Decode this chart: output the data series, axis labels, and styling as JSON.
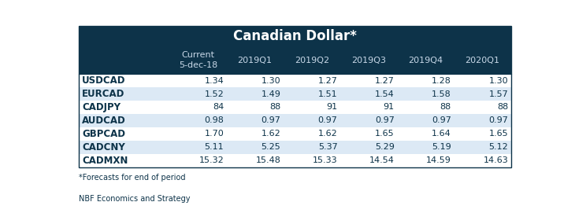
{
  "title": "Canadian Dollar*",
  "dark_bg_color": "#0d3349",
  "title_text_color": "#ffffff",
  "header_text_color": "#c8d8e8",
  "col_headers": [
    "",
    "Current\n5-dec-18",
    "2019Q1",
    "2019Q2",
    "2019Q3",
    "2019Q4",
    "2020Q1"
  ],
  "rows": [
    [
      "USDCAD",
      "1.34",
      "1.30",
      "1.27",
      "1.27",
      "1.28",
      "1.30"
    ],
    [
      "EURCAD",
      "1.52",
      "1.49",
      "1.51",
      "1.54",
      "1.58",
      "1.57"
    ],
    [
      "CADJPY",
      "84",
      "88",
      "91",
      "91",
      "88",
      "88"
    ],
    [
      "AUDCAD",
      "0.98",
      "0.97",
      "0.97",
      "0.97",
      "0.97",
      "0.97"
    ],
    [
      "GBPCAD",
      "1.70",
      "1.62",
      "1.62",
      "1.65",
      "1.64",
      "1.65"
    ],
    [
      "CADCNY",
      "5.11",
      "5.25",
      "5.37",
      "5.29",
      "5.19",
      "5.12"
    ],
    [
      "CADMXN",
      "15.32",
      "15.48",
      "15.33",
      "14.54",
      "14.59",
      "14.63"
    ]
  ],
  "row_colors": [
    "#ffffff",
    "#dce9f5",
    "#ffffff",
    "#dce9f5",
    "#ffffff",
    "#dce9f5",
    "#ffffff"
  ],
  "row_text_color": "#0d3349",
  "label_text_color": "#0d3349",
  "border_color": "#0d3349",
  "footnote1": "*Forecasts for end of period",
  "footnote2": "NBF Economics and Strategy",
  "footnote_color": "#0d3349",
  "footnote_fontsize": 7.0,
  "title_fontsize": 12,
  "header_fontsize": 8.0,
  "cell_fontsize": 8.0,
  "label_fontsize": 8.5
}
